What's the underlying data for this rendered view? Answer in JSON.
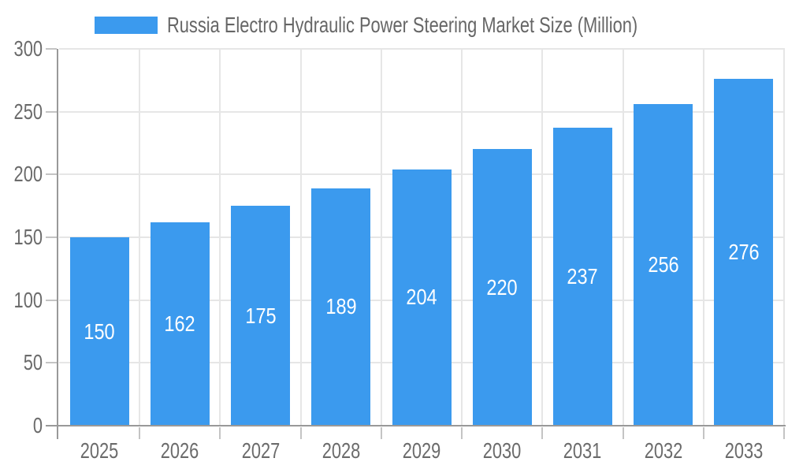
{
  "chart_data": {
    "type": "bar",
    "title": "Russia Electro Hydraulic Power Steering Market Size (Million)",
    "legend": [
      "Russia Electro Hydraulic Power Steering Market Size (Million)"
    ],
    "legend_position": "top",
    "categories": [
      "2025",
      "2026",
      "2027",
      "2028",
      "2029",
      "2030",
      "2031",
      "2032",
      "2033"
    ],
    "values": [
      150,
      162,
      175,
      189,
      204,
      220,
      237,
      256,
      276
    ],
    "xlabel": "",
    "ylabel": "",
    "ylim": [
      0,
      300
    ],
    "yticks": [
      0,
      50,
      100,
      150,
      200,
      250,
      300
    ],
    "grid": true,
    "colors": {
      "bar": "#3B9AEE",
      "value_label": "#FFFFFF",
      "axis_text": "#6B6B6B",
      "legend_text": "#666666",
      "grid_line": "#E6E6E6",
      "axis_line": "#999999",
      "tick_mark": "#C4C4C4",
      "background": "#FFFFFF"
    }
  }
}
